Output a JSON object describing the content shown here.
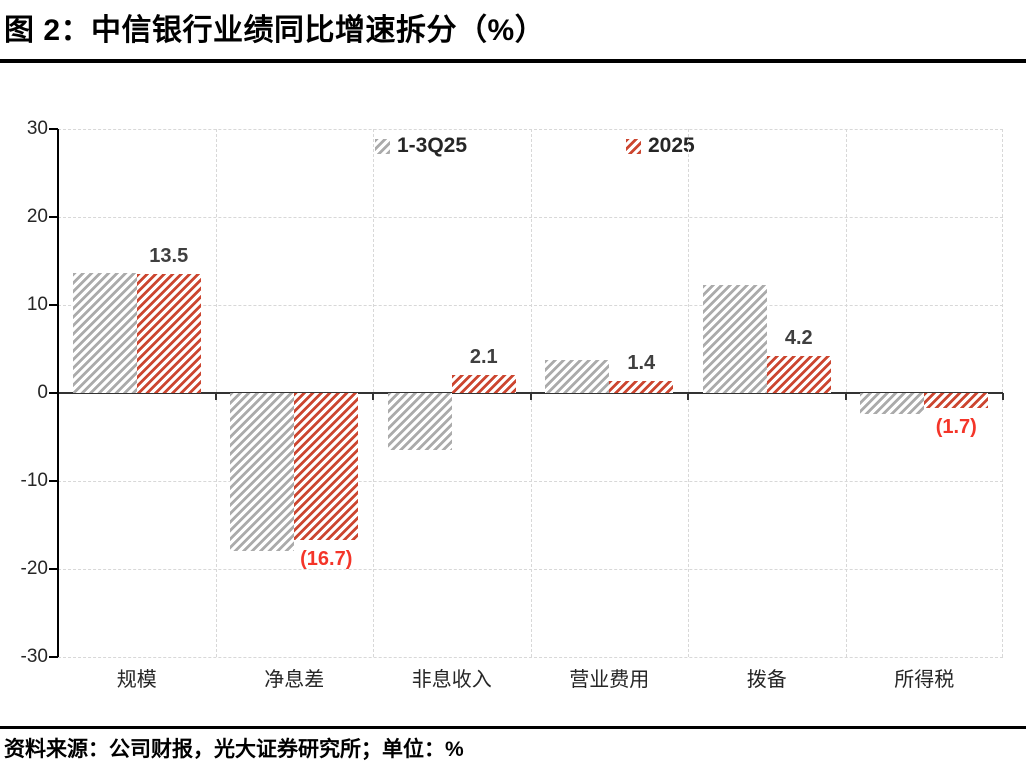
{
  "title": "图 2：中信银行业绩同比增速拆分（%）",
  "footer": "资料来源：公司财报，光大证券研究所；单位：%",
  "colors": {
    "series1_hatch": "#ABABAB",
    "series2_hatch": "#CC4630",
    "negative_label": "#F43529",
    "data_label": "#3F3F3F",
    "grid": "#D8D8D8",
    "axis": "#000000",
    "zero_line": "#333333",
    "tick_label": "#262626"
  },
  "chart_data": {
    "type": "bar",
    "categories": [
      "规模",
      "净息差",
      "非息收入",
      "营业费用",
      "拨备",
      "所得税"
    ],
    "series": [
      {
        "name": "1-3Q25",
        "values": [
          13.6,
          -17.9,
          -6.5,
          3.8,
          12.3,
          -2.4
        ]
      },
      {
        "name": "2025",
        "values": [
          13.5,
          -16.7,
          2.1,
          1.4,
          4.2,
          -1.7
        ]
      }
    ],
    "data_labels": [
      "13.5",
      "(16.7)",
      "2.1",
      "1.4",
      "4.2",
      "(1.7)"
    ],
    "ylim": [
      -30,
      30
    ],
    "yticks": [
      30,
      20,
      10,
      0,
      -10,
      -20,
      -30
    ],
    "grid": true,
    "legend_position": "top",
    "hatch": "diagonal"
  }
}
